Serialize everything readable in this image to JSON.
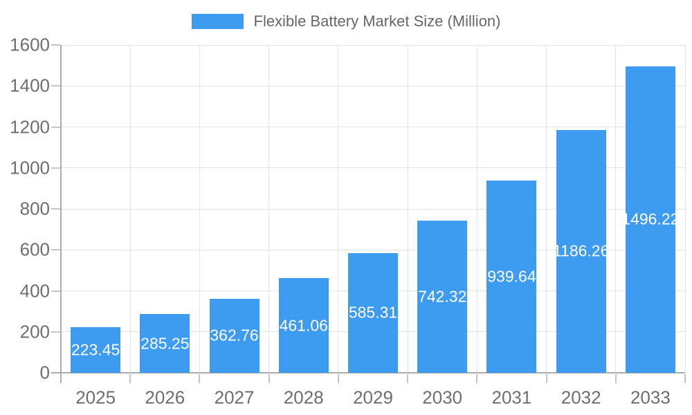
{
  "chart_data": {
    "type": "bar",
    "title": "Flexible Battery Market Size (Million)",
    "categories": [
      "2025",
      "2026",
      "2027",
      "2028",
      "2029",
      "2030",
      "2031",
      "2032",
      "2033"
    ],
    "series": [
      {
        "name": "Flexible Battery Market Size (Million)",
        "values": [
          223.45,
          285.25,
          362.76,
          461.06,
          585.31,
          742.32,
          939.64,
          1186.26,
          1496.22
        ]
      }
    ],
    "value_labels": [
      "223.45",
      "285.25",
      "362.76",
      "461.06",
      "585.31",
      "742.32",
      "939.64",
      "1186.26",
      "1496.22"
    ],
    "xlabel": "",
    "ylabel": "",
    "ylim": [
      0,
      1600
    ],
    "ytick_step": 200,
    "ytick_labels": [
      "0",
      "200",
      "400",
      "600",
      "800",
      "1000",
      "1200",
      "1400",
      "1600"
    ],
    "grid": true,
    "legend_position": "top-center",
    "colors": {
      "bar": "#3d9bf0",
      "value_label_text": "#ffffff",
      "axis_text": "#6e6e6e",
      "legend_text": "#666666",
      "gridline": "#e3e3e3",
      "axis_line": "#ababab"
    }
  }
}
